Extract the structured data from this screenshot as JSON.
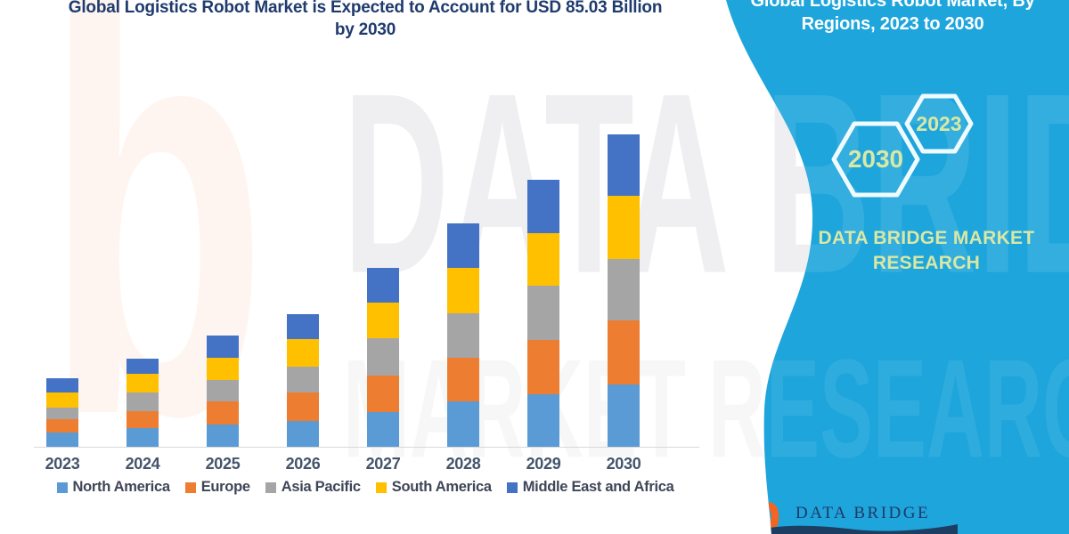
{
  "title": {
    "line1": "Global Logistics Robot Market is Expected to Account for USD 85.03 Billion",
    "line2": "by 2030"
  },
  "chart_data": {
    "type": "bar",
    "stacked": true,
    "title": "Global Logistics Robot Market is Expected to Account for USD 85.03 Billion by 2030",
    "unit": "USD Billion",
    "categories": [
      "2023",
      "2024",
      "2025",
      "2026",
      "2027",
      "2028",
      "2029",
      "2030"
    ],
    "series": [
      {
        "name": "North America",
        "color": "#5B9BD5",
        "values": [
          3.8,
          5.0,
          6.1,
          7.1,
          9.5,
          12.4,
          14.4,
          17.0
        ]
      },
      {
        "name": "Europe",
        "color": "#ED7D31",
        "values": [
          3.8,
          4.7,
          6.3,
          7.7,
          10.0,
          11.9,
          14.7,
          17.5
        ]
      },
      {
        "name": "Asia Pacific",
        "color": "#A5A5A5",
        "values": [
          3.1,
          5.0,
          5.8,
          7.1,
          10.0,
          12.1,
          14.8,
          16.7
        ]
      },
      {
        "name": "South America",
        "color": "#FFC000",
        "values": [
          4.1,
          5.1,
          6.1,
          7.3,
          9.7,
          12.4,
          14.3,
          17.2
        ]
      },
      {
        "name": "Middle East and Africa",
        "color": "#4472C4",
        "values": [
          3.9,
          4.3,
          5.9,
          7.0,
          9.5,
          11.9,
          14.6,
          16.6
        ]
      }
    ],
    "totals_estimated": [
      18.7,
      24.1,
      30.2,
      36.2,
      48.7,
      60.7,
      72.8,
      85.03
    ],
    "ylim": [
      0,
      85.03
    ],
    "grid": false,
    "legend_position": "bottom"
  },
  "sidebar": {
    "title_lines": [
      "Global Logistics Robot Market, By",
      "Regions, 2023 to 2030"
    ],
    "hexagons": [
      {
        "label": "2030"
      },
      {
        "label": "2023"
      }
    ],
    "brand_lines": [
      "DATA BRIDGE MARKET",
      "RESEARCH"
    ],
    "footer": {
      "logo_letter": "b",
      "brand": "DATA BRIDGE"
    }
  },
  "watermarks": {
    "logo_letter": "b",
    "line1": "DATA BRIDGE",
    "line2": "MARKET RESEARCH"
  },
  "colors": {
    "title_text": "#1F3B6E",
    "sidebar_bg": "#1EA5DC",
    "sidebar_accent_text": "#D9E8A4",
    "axis_line": "#D9D9D9",
    "axis_label": "#44546A",
    "legend_label": "#3F4657",
    "footer_logo_orange": "#F26522",
    "footer_navy": "#1E3A66"
  }
}
